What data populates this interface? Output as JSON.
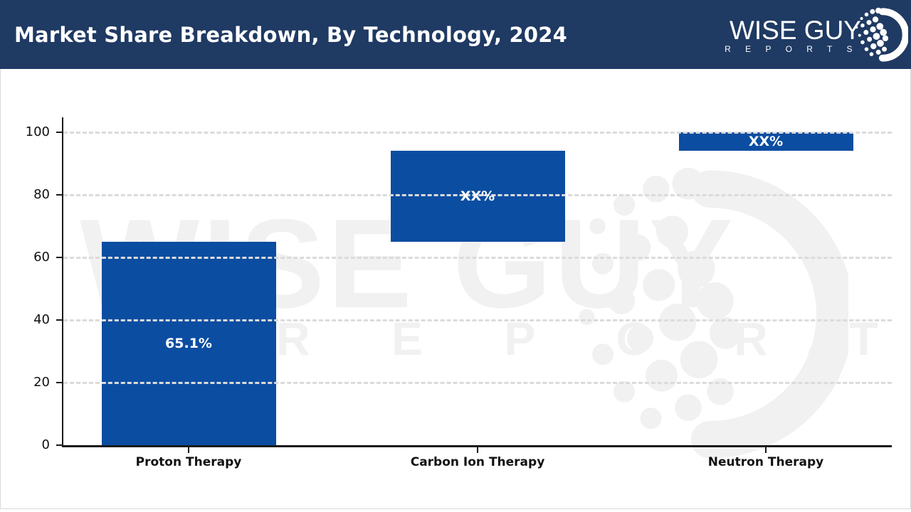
{
  "header": {
    "title": "Market Share Breakdown, By Technology, 2024",
    "brand_line1": "WISE GUY",
    "brand_line2": "R E P O R T S"
  },
  "watermark": {
    "line1": "WISE GUY",
    "line2": "R E P O R T S"
  },
  "chart_data": {
    "type": "bar",
    "subtype": "waterfall",
    "title": "Market Share Breakdown, By Technology, 2024",
    "categories": [
      "Proton Therapy",
      "Carbon Ion Therapy",
      "Neutron Therapy"
    ],
    "segments": [
      {
        "category": "Proton Therapy",
        "start": 0,
        "end": 65.1,
        "label": "65.1%"
      },
      {
        "category": "Carbon Ion Therapy",
        "start": 65.1,
        "end": 94,
        "label": "XX%"
      },
      {
        "category": "Neutron Therapy",
        "start": 94,
        "end": 100,
        "label": "XX%"
      }
    ],
    "yticks": [
      0,
      20,
      40,
      60,
      80,
      100
    ],
    "ylim": [
      0,
      105
    ],
    "xlabel": "",
    "ylabel": "",
    "grid": "horizontal dashed, drawn over bars",
    "legend": "none"
  },
  "colors": {
    "header_bg": "#1f3a63",
    "bar": "#0b4da1",
    "grid": "#dbdbdb",
    "axis": "#1a1a1a",
    "watermark": "#f1f1f1",
    "title_text": "#ffffff",
    "bar_label_text": "#ffffff"
  }
}
